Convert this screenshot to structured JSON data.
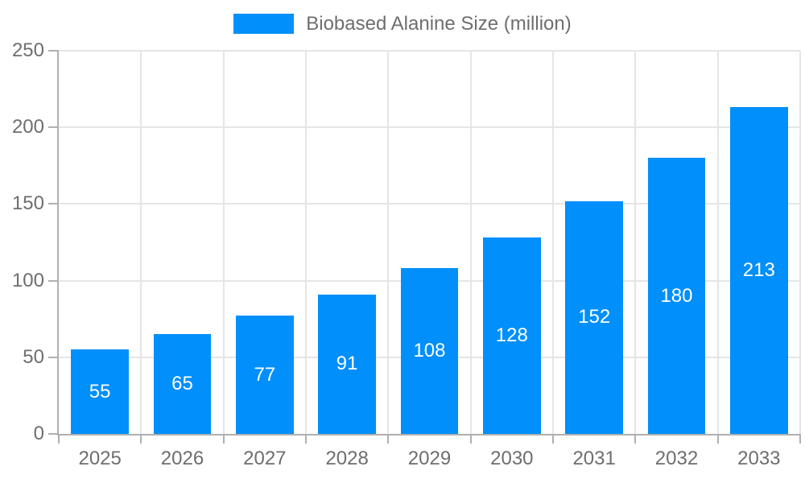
{
  "legend": {
    "label": "Biobased Alanine Size (million)"
  },
  "chart_data": {
    "type": "bar",
    "title": "Biobased Alanine Size (million)",
    "xlabel": "",
    "ylabel": "",
    "categories": [
      "2025",
      "2026",
      "2027",
      "2028",
      "2029",
      "2030",
      "2031",
      "2032",
      "2033"
    ],
    "values": [
      55,
      65,
      77,
      91,
      108,
      128,
      152,
      180,
      213
    ],
    "ylim": [
      0,
      250
    ],
    "yticks": [
      0,
      50,
      100,
      150,
      200,
      250
    ],
    "grid": true,
    "legend_position": "top",
    "bar_width_fraction": 0.7,
    "bar_color": "#008FFB",
    "value_label_color": "#ffffff",
    "grid_color": "#e5e5e5",
    "axis_color": "#b0b0b0",
    "text_color": "#6e6e6e"
  }
}
